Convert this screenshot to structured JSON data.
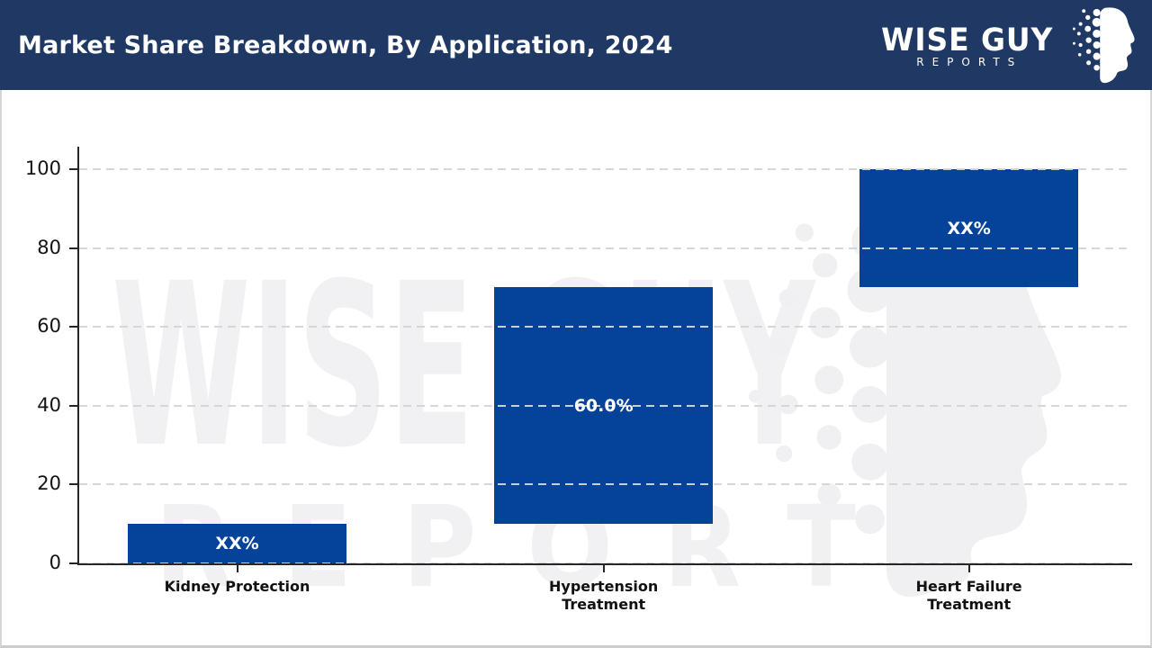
{
  "header": {
    "title": "Market Share Breakdown, By Application, 2024",
    "logo_name": "WISE GUY",
    "logo_sub": "REPORTS"
  },
  "watermark": {
    "name": "WISE GUY",
    "sub": "REPORTS"
  },
  "chart_data": {
    "type": "bar",
    "subtype": "floating-segment-waterfall",
    "title": "Market Share Breakdown, By Application, 2024",
    "categories": [
      "Kidney Protection",
      "Hypertension Treatment",
      "Heart Failure Treatment"
    ],
    "category_lines": [
      [
        "Kidney Protection"
      ],
      [
        "Hypertension",
        "Treatment"
      ],
      [
        "Heart Failure",
        "Treatment"
      ]
    ],
    "segments": [
      {
        "category": "Kidney Protection",
        "start": 0,
        "end": 10,
        "value": 10,
        "label": "XX%"
      },
      {
        "category": "Hypertension Treatment",
        "start": 10,
        "end": 70,
        "value": 60,
        "label": "60.0%"
      },
      {
        "category": "Heart Failure Treatment",
        "start": 70,
        "end": 100,
        "value": 30,
        "label": "XX%"
      }
    ],
    "xlabel": "",
    "ylabel": "",
    "yticks": [
      0,
      20,
      40,
      60,
      80,
      100
    ],
    "ylim": [
      0,
      105.7
    ],
    "grid": "horizontal-dashed",
    "legend": "none",
    "colors": {
      "bar": "#05439b",
      "bar_label": "#ffffff",
      "axis": "#262626",
      "grid": "#d7d7d9",
      "tick_label": "#141414",
      "header_bg": "#203864",
      "watermark": "#f1f1f4"
    }
  }
}
